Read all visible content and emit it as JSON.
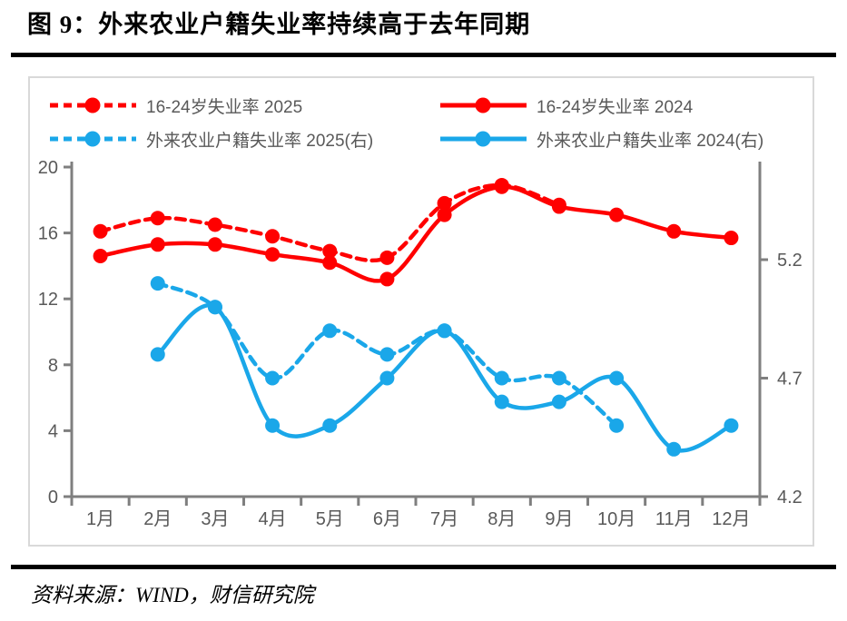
{
  "header": {
    "title": "图 9：外来农业户籍失业率持续高于去年同期"
  },
  "footer": {
    "source": "资料来源：WIND，财信研究院"
  },
  "colors": {
    "red": "#ff0000",
    "blue": "#1aa7e9",
    "axis": "#7f7f7f",
    "tick_label": "#595959",
    "card_border": "#d9d9d9",
    "rule": "#000000"
  },
  "chart_data": {
    "type": "line",
    "title": "图 9：外来农业户籍失业率持续高于去年同期",
    "categories": [
      "1月",
      "2月",
      "3月",
      "4月",
      "5月",
      "6月",
      "7月",
      "8月",
      "9月",
      "10月",
      "11月",
      "12月"
    ],
    "xlabel": "",
    "ylabel": "",
    "grid": false,
    "legend_position": "top",
    "left_axis": {
      "ticks": [
        0,
        4,
        8,
        12,
        16,
        20
      ],
      "range": [
        0,
        20
      ]
    },
    "right_axis": {
      "ticks": [
        4.2,
        4.7,
        5.2
      ],
      "range": [
        4.2,
        5.6
      ],
      "note": "右轴"
    },
    "series": [
      {
        "name": "16-24岁失业率 2025",
        "axis": "left",
        "line": "dashed",
        "color_key": "red",
        "values": [
          16.1,
          16.9,
          16.5,
          15.8,
          14.9,
          14.5,
          17.8,
          18.9,
          17.7,
          null,
          null,
          null
        ]
      },
      {
        "name": "16-24岁失业率 2024",
        "axis": "left",
        "line": "solid",
        "color_key": "red",
        "values": [
          14.6,
          15.3,
          15.3,
          14.7,
          14.2,
          13.2,
          17.1,
          18.8,
          17.6,
          17.1,
          16.1,
          15.7
        ]
      },
      {
        "name": "外来农业户籍失业率 2025(右)",
        "axis": "right",
        "line": "dashed",
        "color_key": "blue",
        "values": [
          null,
          5.1,
          5.0,
          4.7,
          4.9,
          4.8,
          4.9,
          4.7,
          4.7,
          4.5,
          null,
          null
        ]
      },
      {
        "name": "外来农业户籍失业率 2024(右)",
        "axis": "right",
        "line": "solid",
        "color_key": "blue",
        "values": [
          null,
          4.8,
          5.0,
          4.5,
          4.5,
          4.7,
          4.9,
          4.6,
          4.6,
          4.7,
          4.4,
          4.5
        ]
      }
    ]
  }
}
